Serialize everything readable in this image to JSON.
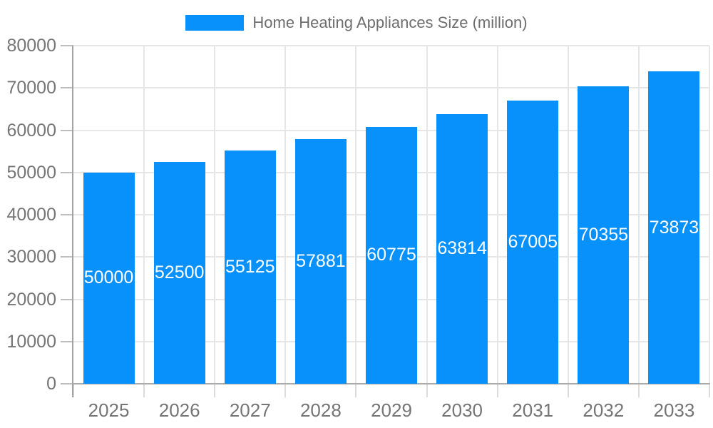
{
  "legend": {
    "label": "Home Heating Appliances Size (million)",
    "swatch_color": "#0991fb"
  },
  "chart_data": {
    "type": "bar",
    "title": "Home Heating Appliances Size (million)",
    "categories": [
      "2025",
      "2026",
      "2027",
      "2028",
      "2029",
      "2030",
      "2031",
      "2032",
      "2033"
    ],
    "series": [
      {
        "name": "Home Heating Appliances Size (million)",
        "values": [
          50000,
          52500,
          55125,
          57881,
          60775,
          63814,
          67005,
          70355,
          73873
        ]
      }
    ],
    "data_labels": [
      "50000",
      "52500",
      "55125",
      "57881",
      "60775",
      "63814",
      "67005",
      "70355",
      "73873"
    ],
    "xlabel": "",
    "ylabel": "",
    "ylim": [
      0,
      80000
    ],
    "ytick_step": 10000,
    "yticks": [
      0,
      10000,
      20000,
      30000,
      40000,
      50000,
      60000,
      70000,
      80000
    ],
    "grid": "on",
    "legend_position": "top",
    "colors": {
      "bar": "#0991fb",
      "bar_label_text": "#ffffff",
      "axis_text": "#757575",
      "legend_text": "#6e6e6e",
      "gridline": "#e6e6e6",
      "axis_line": "#a3a3a3"
    }
  }
}
